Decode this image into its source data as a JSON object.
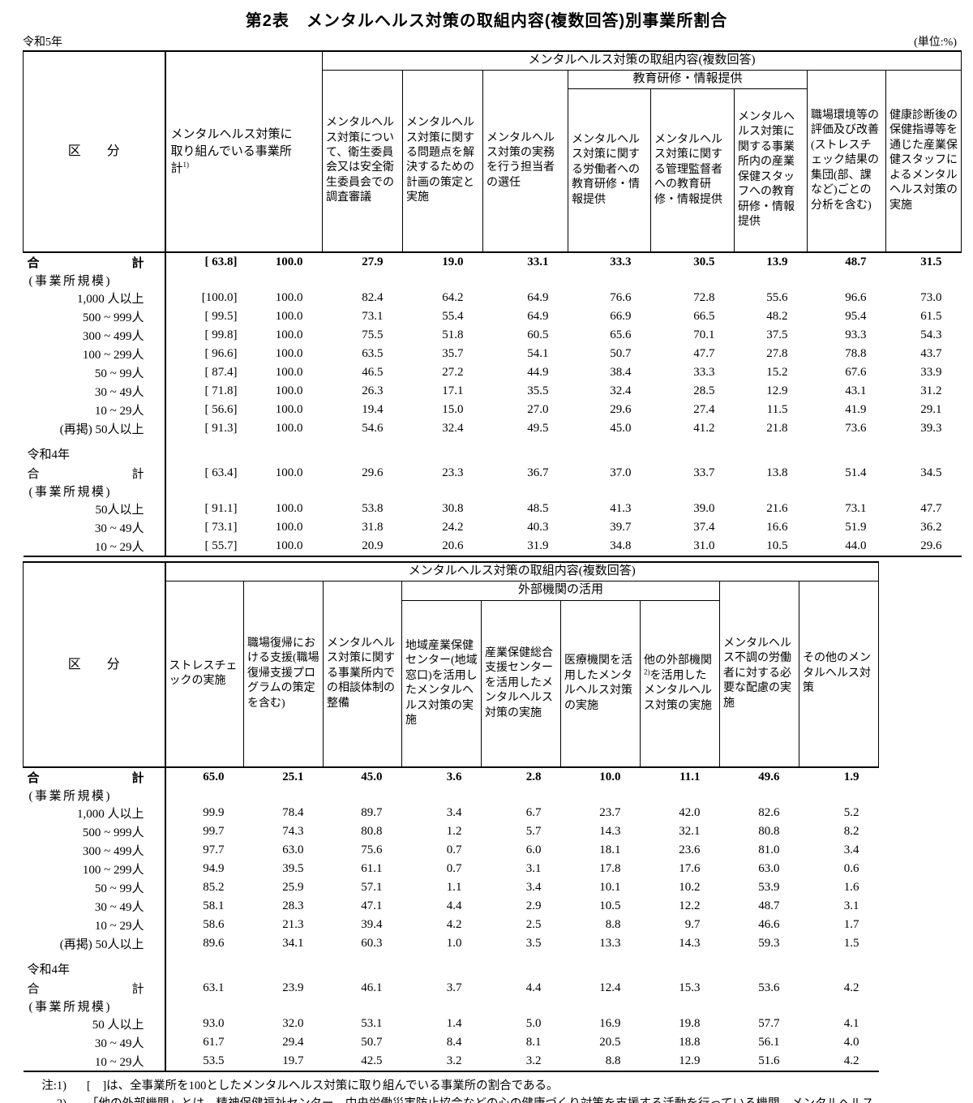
{
  "page": {
    "title": "第2表　メンタルヘルス対策の取組内容(複数回答)別事業所割合",
    "era": "令和5年",
    "unit": "(単位:%)"
  },
  "table1": {
    "kubun": "区　　分",
    "group": "メンタルヘルス対策の取組内容(複数回答)",
    "total_col": {
      "label": "メンタルヘルス対策に取り組んでいる事業所計",
      "sup": "1)"
    },
    "edu_group": "教育研修・情報提供",
    "cols": {
      "c1": "メンタルヘルス対策について、衛生委員会又は安全衛生委員会での調査審議",
      "c2": "メンタルヘルス対策に関する問題点を解決するための計画の策定と実施",
      "c3": "メンタルヘルス対策の実務を行う担当者の選任",
      "c4": "メンタルヘルス対策に関する労働者への教育研修・情報提供",
      "c5": "メンタルヘルス対策に関する管理監督者への教育研修・情報提供",
      "c6": "メンタルヘルス対策に関する事業所内の産業保健スタッフへの教育研修・情報提供",
      "c7": "職場環境等の評価及び改善(ストレスチェック結果の集団(部、課など)ごとの分析を含む)",
      "c8": "健康診断後の保健指導等を通じた産業保健スタッフによるメンタルヘルス対策の実施"
    },
    "rows": [
      {
        "type": "total",
        "bold": true,
        "label": "合　計",
        "bracket": "[ 63.8]",
        "values": [
          "100.0",
          "27.9",
          "19.0",
          "33.1",
          "33.3",
          "30.5",
          "13.9",
          "48.7",
          "31.5"
        ]
      },
      {
        "type": "heading",
        "label": "(事業所規模)"
      },
      {
        "type": "size",
        "label": "1,000 人以上",
        "bracket": "[100.0]",
        "values": [
          "100.0",
          "82.4",
          "64.2",
          "64.9",
          "76.6",
          "72.8",
          "55.6",
          "96.6",
          "73.0"
        ]
      },
      {
        "type": "size",
        "label": "500 ~ 999人",
        "bracket": "[ 99.5]",
        "values": [
          "100.0",
          "73.1",
          "55.4",
          "64.9",
          "66.9",
          "66.5",
          "48.2",
          "95.4",
          "61.5"
        ]
      },
      {
        "type": "size",
        "label": "300 ~ 499人",
        "bracket": "[ 99.8]",
        "values": [
          "100.0",
          "75.5",
          "51.8",
          "60.5",
          "65.6",
          "70.1",
          "37.5",
          "93.3",
          "54.3"
        ]
      },
      {
        "type": "size",
        "label": "100 ~ 299人",
        "bracket": "[ 96.6]",
        "values": [
          "100.0",
          "63.5",
          "35.7",
          "54.1",
          "50.7",
          "47.7",
          "27.8",
          "78.8",
          "43.7"
        ]
      },
      {
        "type": "size",
        "label": "50 ~ 99人",
        "bracket": "[ 87.4]",
        "values": [
          "100.0",
          "46.5",
          "27.2",
          "44.9",
          "38.4",
          "33.3",
          "15.2",
          "67.6",
          "33.9"
        ]
      },
      {
        "type": "size",
        "label": "30 ~ 49人",
        "bracket": "[ 71.8]",
        "values": [
          "100.0",
          "26.3",
          "17.1",
          "35.5",
          "32.4",
          "28.5",
          "12.9",
          "43.1",
          "31.2"
        ]
      },
      {
        "type": "size",
        "label": "10 ~ 29人",
        "bracket": "[ 56.6]",
        "values": [
          "100.0",
          "19.4",
          "15.0",
          "27.0",
          "29.6",
          "27.4",
          "11.5",
          "41.9",
          "29.1"
        ]
      },
      {
        "type": "size",
        "label": "(再掲) 50人以上",
        "bracket": "[ 91.3]",
        "values": [
          "100.0",
          "54.6",
          "32.4",
          "49.5",
          "45.0",
          "41.2",
          "21.8",
          "73.6",
          "39.3"
        ]
      },
      {
        "type": "year",
        "label": "令和4年"
      },
      {
        "type": "total",
        "label": "合　計",
        "bracket": "[ 63.4]",
        "values": [
          "100.0",
          "29.6",
          "23.3",
          "36.7",
          "37.0",
          "33.7",
          "13.8",
          "51.4",
          "34.5"
        ]
      },
      {
        "type": "heading",
        "label": "(事業所規模)"
      },
      {
        "type": "size",
        "label": "50人以上",
        "bracket": "[ 91.1]",
        "values": [
          "100.0",
          "53.8",
          "30.8",
          "48.5",
          "41.3",
          "39.0",
          "21.6",
          "73.1",
          "47.7"
        ]
      },
      {
        "type": "size",
        "label": "30 ~ 49人",
        "bracket": "[ 73.1]",
        "values": [
          "100.0",
          "31.8",
          "24.2",
          "40.3",
          "39.7",
          "37.4",
          "16.6",
          "51.9",
          "36.2"
        ]
      },
      {
        "type": "size",
        "label": "10 ~ 29人",
        "bracket": "[ 55.7]",
        "values": [
          "100.0",
          "20.9",
          "20.6",
          "31.9",
          "34.8",
          "31.0",
          "10.5",
          "44.0",
          "29.6"
        ]
      }
    ]
  },
  "table2": {
    "kubun": "区　　分",
    "group": "メンタルヘルス対策の取組内容(複数回答)",
    "ext_group": "外部機関の活用",
    "cols": {
      "c1": "ストレスチェックの実施",
      "c2": "職場復帰における支援(職場復帰支援プログラムの策定を含む)",
      "c3": "メンタルヘルス対策に関する事業所内での相談体制の整備",
      "c4": "地域産業保健センター(地域窓口)を活用したメンタルヘルス対策の実施",
      "c5": "産業保健総合支援センターを活用したメンタルヘルス対策の実施",
      "c6": "医療機関を活用したメンタルヘルス対策の実施",
      "c7_pre": "他の外部機関",
      "c7_sup": "2)",
      "c7_post": "を活用したメンタルヘルス対策の実施",
      "c8": "メンタルヘルス不調の労働者に対する必要な配慮の実施",
      "c9": "その他のメンタルヘルス対策"
    },
    "rows": [
      {
        "type": "total",
        "bold": true,
        "label": "合　計",
        "values": [
          "65.0",
          "25.1",
          "45.0",
          "3.6",
          "2.8",
          "10.0",
          "11.1",
          "49.6",
          "1.9"
        ]
      },
      {
        "type": "heading",
        "label": "(事業所規模)"
      },
      {
        "type": "size",
        "label": "1,000 人以上",
        "values": [
          "99.9",
          "78.4",
          "89.7",
          "3.4",
          "6.7",
          "23.7",
          "42.0",
          "82.6",
          "5.2"
        ]
      },
      {
        "type": "size",
        "label": "500 ~ 999人",
        "values": [
          "99.7",
          "74.3",
          "80.8",
          "1.2",
          "5.7",
          "14.3",
          "32.1",
          "80.8",
          "8.2"
        ]
      },
      {
        "type": "size",
        "label": "300 ~ 499人",
        "values": [
          "97.7",
          "63.0",
          "75.6",
          "0.7",
          "6.0",
          "18.1",
          "23.6",
          "81.0",
          "3.4"
        ]
      },
      {
        "type": "size",
        "label": "100 ~ 299人",
        "values": [
          "94.9",
          "39.5",
          "61.1",
          "0.7",
          "3.1",
          "17.8",
          "17.6",
          "63.0",
          "0.6"
        ]
      },
      {
        "type": "size",
        "label": "50 ~ 99人",
        "values": [
          "85.2",
          "25.9",
          "57.1",
          "1.1",
          "3.4",
          "10.1",
          "10.2",
          "53.9",
          "1.6"
        ]
      },
      {
        "type": "size",
        "label": "30 ~ 49人",
        "values": [
          "58.1",
          "28.3",
          "47.1",
          "4.4",
          "2.9",
          "10.5",
          "12.2",
          "48.7",
          "3.1"
        ]
      },
      {
        "type": "size",
        "label": "10 ~ 29人",
        "values": [
          "58.6",
          "21.3",
          "39.4",
          "4.2",
          "2.5",
          "8.8",
          "9.7",
          "46.6",
          "1.7"
        ]
      },
      {
        "type": "size",
        "label": "(再掲) 50人以上",
        "values": [
          "89.6",
          "34.1",
          "60.3",
          "1.0",
          "3.5",
          "13.3",
          "14.3",
          "59.3",
          "1.5"
        ]
      },
      {
        "type": "year",
        "label": "令和4年"
      },
      {
        "type": "total",
        "label": "合　計",
        "values": [
          "63.1",
          "23.9",
          "46.1",
          "3.7",
          "4.4",
          "12.4",
          "15.3",
          "53.6",
          "4.2"
        ]
      },
      {
        "type": "heading",
        "label": "(事業所規模)"
      },
      {
        "type": "size",
        "label": "50 人以上",
        "values": [
          "93.0",
          "32.0",
          "53.1",
          "1.4",
          "5.0",
          "16.9",
          "19.8",
          "57.7",
          "4.1"
        ]
      },
      {
        "type": "size",
        "label": "30 ~ 49人",
        "values": [
          "61.7",
          "29.4",
          "50.7",
          "8.4",
          "8.1",
          "20.5",
          "18.8",
          "56.1",
          "4.0"
        ]
      },
      {
        "type": "size",
        "label": "10 ~ 29人",
        "values": [
          "53.5",
          "19.7",
          "42.5",
          "3.2",
          "3.2",
          "8.8",
          "12.9",
          "51.6",
          "4.2"
        ]
      }
    ]
  },
  "notes": [
    {
      "prefix": "注:1)",
      "text": "[　]は、全事業所を100としたメンタルヘルス対策に取り組んでいる事業所の割合である。"
    },
    {
      "prefix": "2)",
      "text": "「他の外部機関」とは、精神保健福祉センター、中央労働災害防止協会などの心の健康づくり対策を支援する活動を行っている機関、メンタルヘルス支援機関などをいう。"
    }
  ]
}
